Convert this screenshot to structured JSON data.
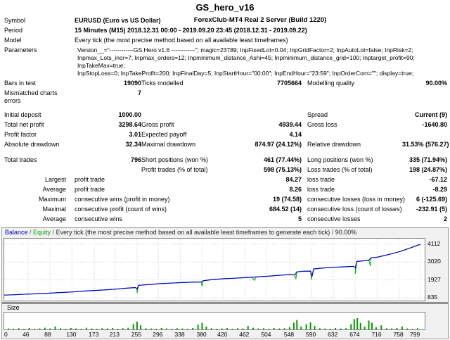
{
  "title": "GS_hero_v16",
  "header": {
    "server": "ForexClub-MT4 Real 2 Server (Build 1220)"
  },
  "report": {
    "rows": [
      {
        "cells": [
          {
            "c": 0,
            "t": "Symbol",
            "k": "lbl"
          },
          {
            "c": 2,
            "s": 2,
            "t": "EURUSD (Euro vs US Dollar)",
            "k": "valL"
          }
        ]
      },
      {
        "cells": [
          {
            "c": 0,
            "t": "Period",
            "k": "lbl"
          },
          {
            "c": 2,
            "s": 6,
            "t": "15 Minutes (M15) 2018.12.31 00:00 - 2019.09.20 23:45 (2018.12.31 - 2019.09.22)",
            "k": "valL"
          }
        ]
      },
      {
        "cells": [
          {
            "c": 0,
            "t": "Model",
            "k": "lbl"
          },
          {
            "c": 2,
            "s": 6,
            "t": "Every tick (the most precise method based on all available least timeframes)",
            "k": "lbl"
          }
        ]
      },
      {
        "cells": [
          {
            "c": 0,
            "t": "Parameters",
            "k": "lbl"
          },
          {
            "c": 2,
            "s": 6,
            "t": "Version__=\"------------GS Hero v1.6 ------------\"; magic=23789; InpFixedLot=0.04; InpGridFactor=2; InpAutoLot=false; InpRisk=2;\nInpmax_Lots_incr=7; Inpmax_orders=12; Inpminimum_distance_Ashi=45; Inpminimum_distance_grid=100; Inptarget_profit=90; InpTakeMax=true;\nInpStopLoss=0; InpTakeProfit=200; InpFinalDay=5; InpStartHour=\"00:00\"; InpEndHour=\"23:59\"; InpOrderCom=\"\"; display=true;",
            "k": "params"
          }
        ]
      },
      {
        "cells": [
          {
            "c": 0,
            "t": "Bars in test",
            "k": "lbl"
          },
          {
            "c": 2,
            "t": "19090",
            "k": "val"
          },
          {
            "c": 3,
            "t": "Ticks modelled",
            "k": "lbl"
          },
          {
            "c": 4,
            "t": "7705664",
            "k": "val"
          },
          {
            "c": 6,
            "t": "Modelling quality",
            "k": "lbl"
          },
          {
            "c": 7,
            "t": "90.00%",
            "k": "val"
          }
        ]
      },
      {
        "cells": [
          {
            "c": 0,
            "t": "Mismatched charts errors",
            "k": "wrap"
          },
          {
            "c": 2,
            "t": "7",
            "k": "val"
          }
        ]
      },
      {
        "spacer": true
      },
      {
        "cells": [
          {
            "c": 0,
            "t": "Initial deposit",
            "k": "lbl"
          },
          {
            "c": 2,
            "t": "1000.00",
            "k": "val"
          },
          {
            "c": 6,
            "t": "Spread",
            "k": "lbl"
          },
          {
            "c": 7,
            "t": "Current (9)",
            "k": "val"
          }
        ]
      },
      {
        "cells": [
          {
            "c": 0,
            "t": "Total net profit",
            "k": "lbl"
          },
          {
            "c": 2,
            "t": "3298.64",
            "k": "val"
          },
          {
            "c": 3,
            "t": "Gross profit",
            "k": "lbl"
          },
          {
            "c": 4,
            "t": "4939.44",
            "k": "val"
          },
          {
            "c": 6,
            "t": "Gross loss",
            "k": "lbl"
          },
          {
            "c": 7,
            "t": "-1640.80",
            "k": "val"
          }
        ]
      },
      {
        "cells": [
          {
            "c": 0,
            "t": "Profit factor",
            "k": "lbl"
          },
          {
            "c": 2,
            "t": "3.01",
            "k": "val"
          },
          {
            "c": 3,
            "t": "Expected payoff",
            "k": "lbl"
          },
          {
            "c": 4,
            "t": "4.14",
            "k": "val"
          }
        ]
      },
      {
        "cells": [
          {
            "c": 0,
            "t": "Absolute drawdown",
            "k": "wrap"
          },
          {
            "c": 2,
            "t": "32.34",
            "k": "val"
          },
          {
            "c": 3,
            "t": "Maximal drawdown",
            "k": "lbl"
          },
          {
            "c": 4,
            "t": "874.97 (24.12%)",
            "k": "val"
          },
          {
            "c": 6,
            "t": "Relative drawdown",
            "k": "lbl"
          },
          {
            "c": 7,
            "t": "31.53% (576.27)",
            "k": "val"
          }
        ]
      },
      {
        "spacer": true
      },
      {
        "cells": [
          {
            "c": 0,
            "t": "Total trades",
            "k": "lbl"
          },
          {
            "c": 2,
            "t": "796",
            "k": "val"
          },
          {
            "c": 3,
            "t": "Short positions (won %)",
            "k": "lbl"
          },
          {
            "c": 4,
            "t": "461 (77.44%)",
            "k": "val"
          },
          {
            "c": 6,
            "t": "Long positions (won %)",
            "k": "lbl"
          },
          {
            "c": 7,
            "t": "335 (71.94%)",
            "k": "val"
          }
        ]
      },
      {
        "cells": [
          {
            "c": 3,
            "t": "Profit trades (% of total)",
            "k": "lbl"
          },
          {
            "c": 4,
            "t": "598 (75.13%)",
            "k": "val"
          },
          {
            "c": 6,
            "t": "Loss trades (% of total)",
            "k": "lbl"
          },
          {
            "c": 7,
            "t": "198 (24.87%)",
            "k": "val"
          }
        ]
      },
      {
        "cells": [
          {
            "c": 0,
            "t": "Largest",
            "k": "qual"
          },
          {
            "c": 2,
            "s": 2,
            "t": "profit trade",
            "k": "lbl"
          },
          {
            "c": 4,
            "t": "84.27",
            "k": "val"
          },
          {
            "c": 6,
            "t": "loss trade",
            "k": "lbl"
          },
          {
            "c": 7,
            "t": "-67.12",
            "k": "val"
          }
        ]
      },
      {
        "cells": [
          {
            "c": 0,
            "t": "Average",
            "k": "qual"
          },
          {
            "c": 2,
            "s": 2,
            "t": "profit trade",
            "k": "lbl"
          },
          {
            "c": 4,
            "t": "8.26",
            "k": "val"
          },
          {
            "c": 6,
            "t": "loss trade",
            "k": "lbl"
          },
          {
            "c": 7,
            "t": "-8.29",
            "k": "val"
          }
        ]
      },
      {
        "cells": [
          {
            "c": 0,
            "t": "Maximum",
            "k": "qual"
          },
          {
            "c": 2,
            "s": 2,
            "t": "consecutive wins (profit in money)",
            "k": "lbl"
          },
          {
            "c": 4,
            "t": "19 (74.58)",
            "k": "val"
          },
          {
            "c": 6,
            "t": "consecutive losses (loss in money)",
            "k": "lbl"
          },
          {
            "c": 7,
            "t": "6 (-125.69)",
            "k": "val"
          }
        ]
      },
      {
        "cells": [
          {
            "c": 0,
            "t": "Maximal",
            "k": "qual"
          },
          {
            "c": 2,
            "s": 2,
            "t": "consecutive profit (count of wins)",
            "k": "lbl"
          },
          {
            "c": 4,
            "t": "684.52 (14)",
            "k": "val"
          },
          {
            "c": 6,
            "t": "consecutive loss (count of losses)",
            "k": "lbl"
          },
          {
            "c": 7,
            "t": "-232.91 (5)",
            "k": "val"
          }
        ]
      },
      {
        "cells": [
          {
            "c": 0,
            "t": "Average",
            "k": "qual"
          },
          {
            "c": 2,
            "s": 2,
            "t": "consecutive wins",
            "k": "lbl"
          },
          {
            "c": 4,
            "t": "5",
            "k": "val"
          },
          {
            "c": 6,
            "t": "consecutive losses",
            "k": "lbl"
          },
          {
            "c": 7,
            "t": "2",
            "k": "val"
          }
        ]
      }
    ]
  },
  "chart_data": {
    "type": "line",
    "legend": {
      "balance": "Balance",
      "equity": "Equity",
      "sep": " / ",
      "description": "Every tick (the most precise method based on all available least timeframes to generate each tick)",
      "quality": "90.00%"
    },
    "size_label": "Size",
    "x_ticks": [
      0,
      46,
      88,
      130,
      173,
      213,
      255,
      296,
      338,
      380,
      420,
      462,
      504,
      548,
      590,
      632,
      674,
      716,
      758,
      799
    ],
    "y_ticks": [
      4112,
      3020,
      1927,
      835
    ],
    "x_max": 810,
    "y_range": [
      835,
      4112
    ],
    "colors": {
      "balance": "#0000C8",
      "equity": "#00A800",
      "bars": "#009B00",
      "grid": "#CFCFCF"
    },
    "balance": [
      [
        0,
        1000
      ],
      [
        20,
        1020
      ],
      [
        45,
        1060
      ],
      [
        70,
        1090
      ],
      [
        100,
        1140
      ],
      [
        130,
        1190
      ],
      [
        160,
        1260
      ],
      [
        190,
        1310
      ],
      [
        213,
        1360
      ],
      [
        235,
        1420
      ],
      [
        252,
        1460
      ],
      [
        255,
        1380
      ],
      [
        258,
        1600
      ],
      [
        280,
        1650
      ],
      [
        300,
        1700
      ],
      [
        320,
        1730
      ],
      [
        338,
        1760
      ],
      [
        360,
        1790
      ],
      [
        378,
        1800
      ],
      [
        382,
        1880
      ],
      [
        400,
        1950
      ],
      [
        420,
        2000
      ],
      [
        440,
        2030
      ],
      [
        462,
        2070
      ],
      [
        485,
        2110
      ],
      [
        504,
        2150
      ],
      [
        525,
        2200
      ],
      [
        548,
        2260
      ],
      [
        558,
        2230
      ],
      [
        562,
        2420
      ],
      [
        575,
        2460
      ],
      [
        588,
        2470
      ],
      [
        591,
        2150
      ],
      [
        594,
        2600
      ],
      [
        610,
        2650
      ],
      [
        632,
        2700
      ],
      [
        650,
        2730
      ],
      [
        670,
        2760
      ],
      [
        674,
        2690
      ],
      [
        677,
        3060
      ],
      [
        690,
        3100
      ],
      [
        700,
        3130
      ],
      [
        704,
        3280
      ],
      [
        716,
        3320
      ],
      [
        730,
        3420
      ],
      [
        745,
        3540
      ],
      [
        758,
        3650
      ],
      [
        770,
        3780
      ],
      [
        785,
        3950
      ],
      [
        799,
        4112
      ]
    ],
    "equity_spikes": [
      [
        255,
        1120
      ],
      [
        380,
        1530
      ],
      [
        480,
        1900
      ],
      [
        560,
        1980
      ],
      [
        590,
        1950
      ],
      [
        674,
        2300
      ],
      [
        703,
        2780
      ]
    ],
    "size_bars": [
      [
        8,
        0.14
      ],
      [
        18,
        0.12
      ],
      [
        28,
        0.16
      ],
      [
        38,
        0.12
      ],
      [
        48,
        0.18
      ],
      [
        58,
        0.12
      ],
      [
        68,
        0.14
      ],
      [
        78,
        0.2
      ],
      [
        88,
        0.14
      ],
      [
        98,
        0.3
      ],
      [
        108,
        0.16
      ],
      [
        118,
        0.12
      ],
      [
        128,
        0.18
      ],
      [
        138,
        0.14
      ],
      [
        148,
        0.12
      ],
      [
        158,
        0.2
      ],
      [
        168,
        0.14
      ],
      [
        178,
        0.12
      ],
      [
        188,
        0.16
      ],
      [
        198,
        0.14
      ],
      [
        208,
        0.18
      ],
      [
        218,
        0.12
      ],
      [
        228,
        0.16
      ],
      [
        238,
        0.2
      ],
      [
        248,
        0.5
      ],
      [
        255,
        0.72
      ],
      [
        262,
        0.4
      ],
      [
        272,
        0.16
      ],
      [
        282,
        0.14
      ],
      [
        292,
        0.12
      ],
      [
        302,
        0.18
      ],
      [
        312,
        0.14
      ],
      [
        322,
        0.12
      ],
      [
        332,
        0.16
      ],
      [
        342,
        0.14
      ],
      [
        352,
        0.12
      ],
      [
        362,
        0.18
      ],
      [
        372,
        0.45
      ],
      [
        380,
        0.62
      ],
      [
        388,
        0.3
      ],
      [
        398,
        0.16
      ],
      [
        408,
        0.12
      ],
      [
        418,
        0.14
      ],
      [
        428,
        0.18
      ],
      [
        438,
        0.12
      ],
      [
        448,
        0.16
      ],
      [
        458,
        0.14
      ],
      [
        468,
        0.35
      ],
      [
        478,
        0.2
      ],
      [
        488,
        0.14
      ],
      [
        498,
        0.16
      ],
      [
        508,
        0.12
      ],
      [
        518,
        0.18
      ],
      [
        528,
        0.14
      ],
      [
        538,
        0.16
      ],
      [
        548,
        0.25
      ],
      [
        556,
        0.62
      ],
      [
        562,
        0.85
      ],
      [
        570,
        0.3
      ],
      [
        580,
        0.5
      ],
      [
        588,
        0.65
      ],
      [
        596,
        0.35
      ],
      [
        606,
        0.16
      ],
      [
        616,
        0.14
      ],
      [
        626,
        0.12
      ],
      [
        636,
        0.18
      ],
      [
        646,
        0.14
      ],
      [
        656,
        0.16
      ],
      [
        666,
        0.5
      ],
      [
        672,
        0.92
      ],
      [
        678,
        1
      ],
      [
        684,
        0.6
      ],
      [
        692,
        0.3
      ],
      [
        700,
        0.8
      ],
      [
        706,
        0.62
      ],
      [
        714,
        0.25
      ],
      [
        724,
        0.4
      ],
      [
        734,
        0.16
      ],
      [
        744,
        0.14
      ],
      [
        754,
        0.18
      ],
      [
        764,
        0.3
      ],
      [
        774,
        0.14
      ],
      [
        784,
        0.12
      ],
      [
        794,
        0.16
      ]
    ]
  }
}
